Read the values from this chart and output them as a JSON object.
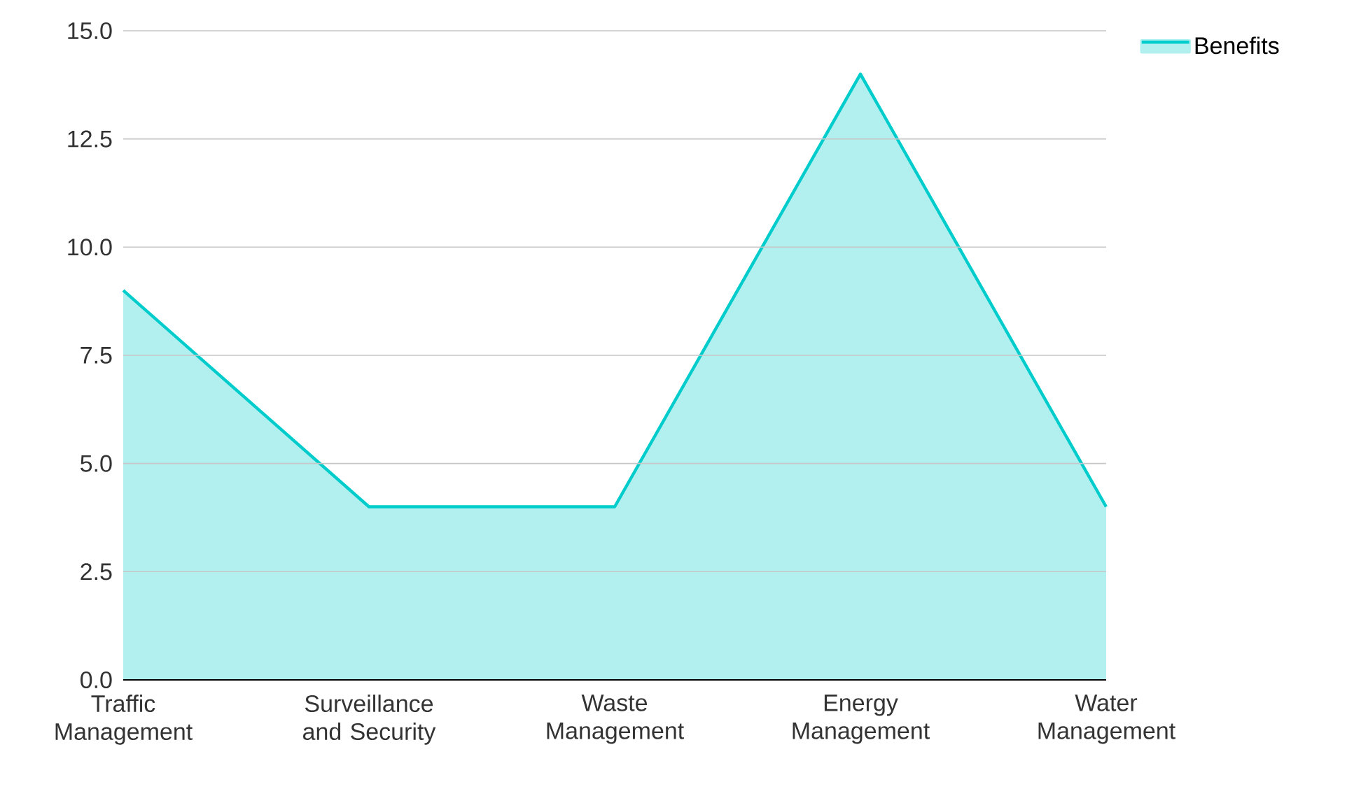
{
  "chart_data": {
    "type": "area",
    "categories": [
      "Traffic Management",
      "Surveillance and Security",
      "Waste Management",
      "Energy Management",
      "Water Management"
    ],
    "series": [
      {
        "name": "Benefits",
        "color": "#00cccc",
        "values": [
          9,
          4,
          4,
          14,
          4
        ]
      }
    ],
    "ylim": [
      0,
      15
    ],
    "yticks": [
      {
        "value": 0,
        "label": "0.0"
      },
      {
        "value": 2.5,
        "label": "2.5"
      },
      {
        "value": 5,
        "label": "5.0"
      },
      {
        "value": 7.5,
        "label": "7.5"
      },
      {
        "value": 10,
        "label": "10.0"
      },
      {
        "value": 12.5,
        "label": "12.5"
      },
      {
        "value": 15,
        "label": "15.0"
      }
    ],
    "grid": "y",
    "legend": "top right",
    "marker": "none",
    "line_style": "solid"
  }
}
